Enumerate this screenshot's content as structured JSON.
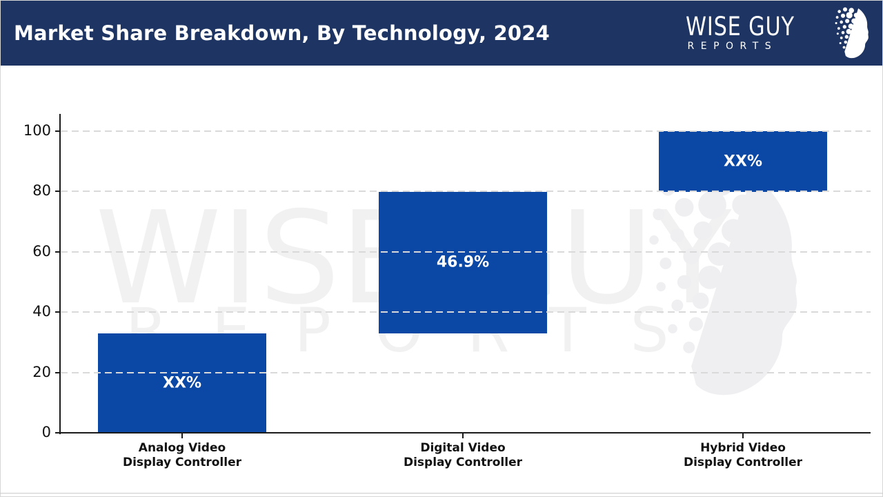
{
  "header": {
    "title": "Market Share Breakdown, By Technology, 2024",
    "background_color": "#1e3462",
    "logo": {
      "line1": "WISE GUY",
      "line2": "REPORTS"
    }
  },
  "watermark": {
    "line1": "WISE GUY",
    "line2": "REPORTS"
  },
  "chart_data": {
    "type": "bar",
    "subtype": "stacked-segment-waterfall",
    "title": "Market Share Breakdown, By Technology, 2024",
    "categories": [
      [
        "Analog Video",
        "Display Controller"
      ],
      [
        "Digital Video",
        "Display Controller"
      ],
      [
        "Hybrid Video",
        "Display Controller"
      ]
    ],
    "bars": [
      {
        "from": 0,
        "to": 33,
        "label": "XX%"
      },
      {
        "from": 33,
        "to": 79.9,
        "label": "46.9%"
      },
      {
        "from": 79.9,
        "to": 100,
        "label": "XX%"
      }
    ],
    "labeled_values": {
      "digital_video_display_controller": 46.9
    },
    "yticks": [
      0,
      20,
      40,
      60,
      80,
      100
    ],
    "ylim": [
      0,
      105
    ],
    "xlabel": "",
    "ylabel": "",
    "bar_color": "#0b47a4",
    "bar_label_color": "#ffffff",
    "grid": "horizontal-dashed",
    "grid_color": "#d9d9d9",
    "legend": "none"
  }
}
